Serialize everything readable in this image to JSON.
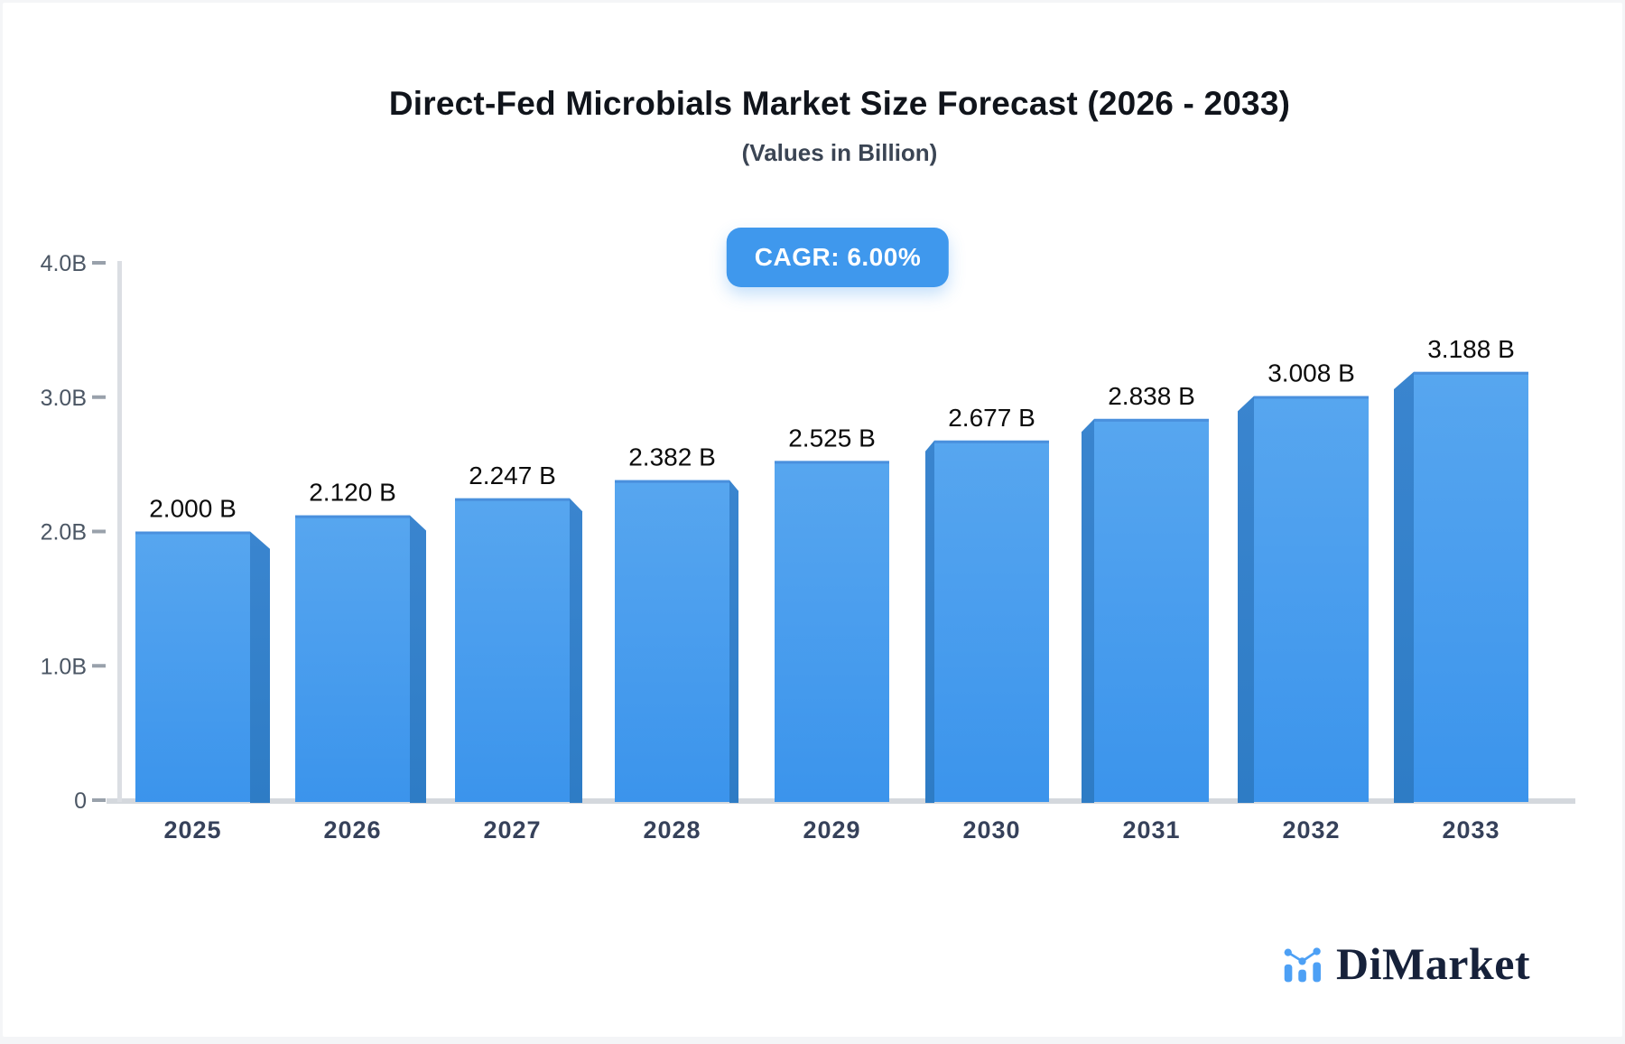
{
  "header": {
    "title": "Direct-Fed Microbials Market Size Forecast (2026 - 2033)",
    "subtitle": "(Values in Billion)",
    "cagr_badge": "CAGR: 6.00%"
  },
  "brand": {
    "name": "DiMarket",
    "icon": "mini-bar-chart-logo-icon",
    "icon_color": "#4da0f5",
    "text_color": "#16213a"
  },
  "colors": {
    "bar_face_top": "#57a6ef",
    "bar_face_bottom": "#3b94ec",
    "bar_side_top": "#3a85cf",
    "bar_side_bottom": "#2e7cc5",
    "bar_top_edge": "#4a90dd",
    "badge_bg": "#3f98ed",
    "axis_line": "#dbdee3",
    "baseline": "#d4d8dd",
    "tick": "#99a1ab",
    "y_label": "#4b5664",
    "x_label": "#36415a",
    "value_label": "#0c0c0c"
  },
  "chart_data": {
    "type": "bar",
    "title": "Direct-Fed Microbials Market Size Forecast (2026 - 2033)",
    "subtitle": "(Values in Billion)",
    "unit": "Billion",
    "cagr_label": "CAGR: 6.00%",
    "categories": [
      "2025",
      "2026",
      "2027",
      "2028",
      "2029",
      "2030",
      "2031",
      "2032",
      "2033"
    ],
    "values": [
      2.0,
      2.12,
      2.247,
      2.382,
      2.525,
      2.677,
      2.838,
      3.008,
      3.188
    ],
    "value_labels": [
      "2.000 B",
      "2.120 B",
      "2.247 B",
      "2.382 B",
      "2.525 B",
      "2.677 B",
      "2.838 B",
      "3.008 B",
      "3.188 B"
    ],
    "xlabel": "",
    "ylabel": "",
    "ylim": [
      0,
      4
    ],
    "yticks": [
      {
        "v": 0,
        "label": "0"
      },
      {
        "v": 1,
        "label": "1.0B"
      },
      {
        "v": 2,
        "label": "2.0B"
      },
      {
        "v": 3,
        "label": "3.0B"
      },
      {
        "v": 4,
        "label": "4.0B"
      }
    ],
    "grid": false,
    "legend": false,
    "style": "3d-perspective-bars"
  }
}
